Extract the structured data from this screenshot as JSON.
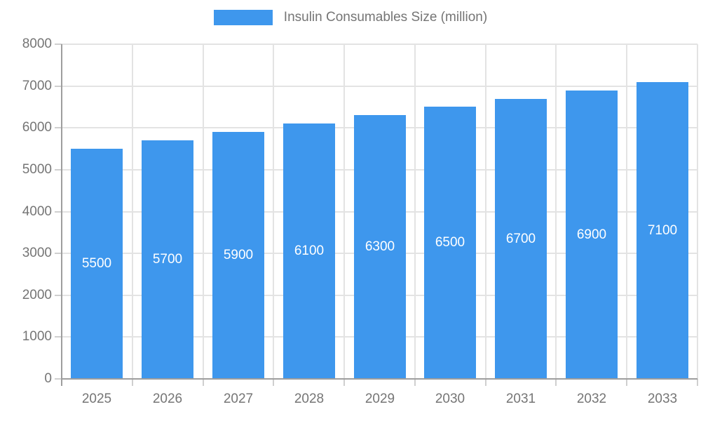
{
  "legend": {
    "label": "Insulin Consumables Size (million)",
    "position": "top"
  },
  "colors": {
    "bar": "#3E97ED",
    "axis_text": "#757575",
    "legend_text": "#757575",
    "bar_label_text": "#ffffff",
    "gridline": "#e3e3e3",
    "axis_line": "#9e9e9e",
    "tick_mark": "#cfcfcf",
    "background": "#ffffff"
  },
  "chart_data": {
    "type": "bar",
    "title": "",
    "series_name": "Insulin Consumables Size (million)",
    "categories": [
      "2025",
      "2026",
      "2027",
      "2028",
      "2029",
      "2030",
      "2031",
      "2032",
      "2033"
    ],
    "values": [
      5500,
      5700,
      5900,
      6100,
      6300,
      6500,
      6700,
      6900,
      7100
    ],
    "bar_labels": [
      "5500",
      "5700",
      "5900",
      "6100",
      "6300",
      "6500",
      "6700",
      "6900",
      "7100"
    ],
    "xlabel": "",
    "ylabel": "",
    "ylim": [
      0,
      8000
    ],
    "yticks": [
      0,
      1000,
      2000,
      3000,
      4000,
      5000,
      6000,
      7000,
      8000
    ],
    "ytick_labels": [
      "0",
      "1000",
      "2000",
      "3000",
      "4000",
      "5000",
      "6000",
      "7000",
      "8000"
    ],
    "grid": true,
    "legend_position": "top",
    "bar_label_position": "center"
  }
}
